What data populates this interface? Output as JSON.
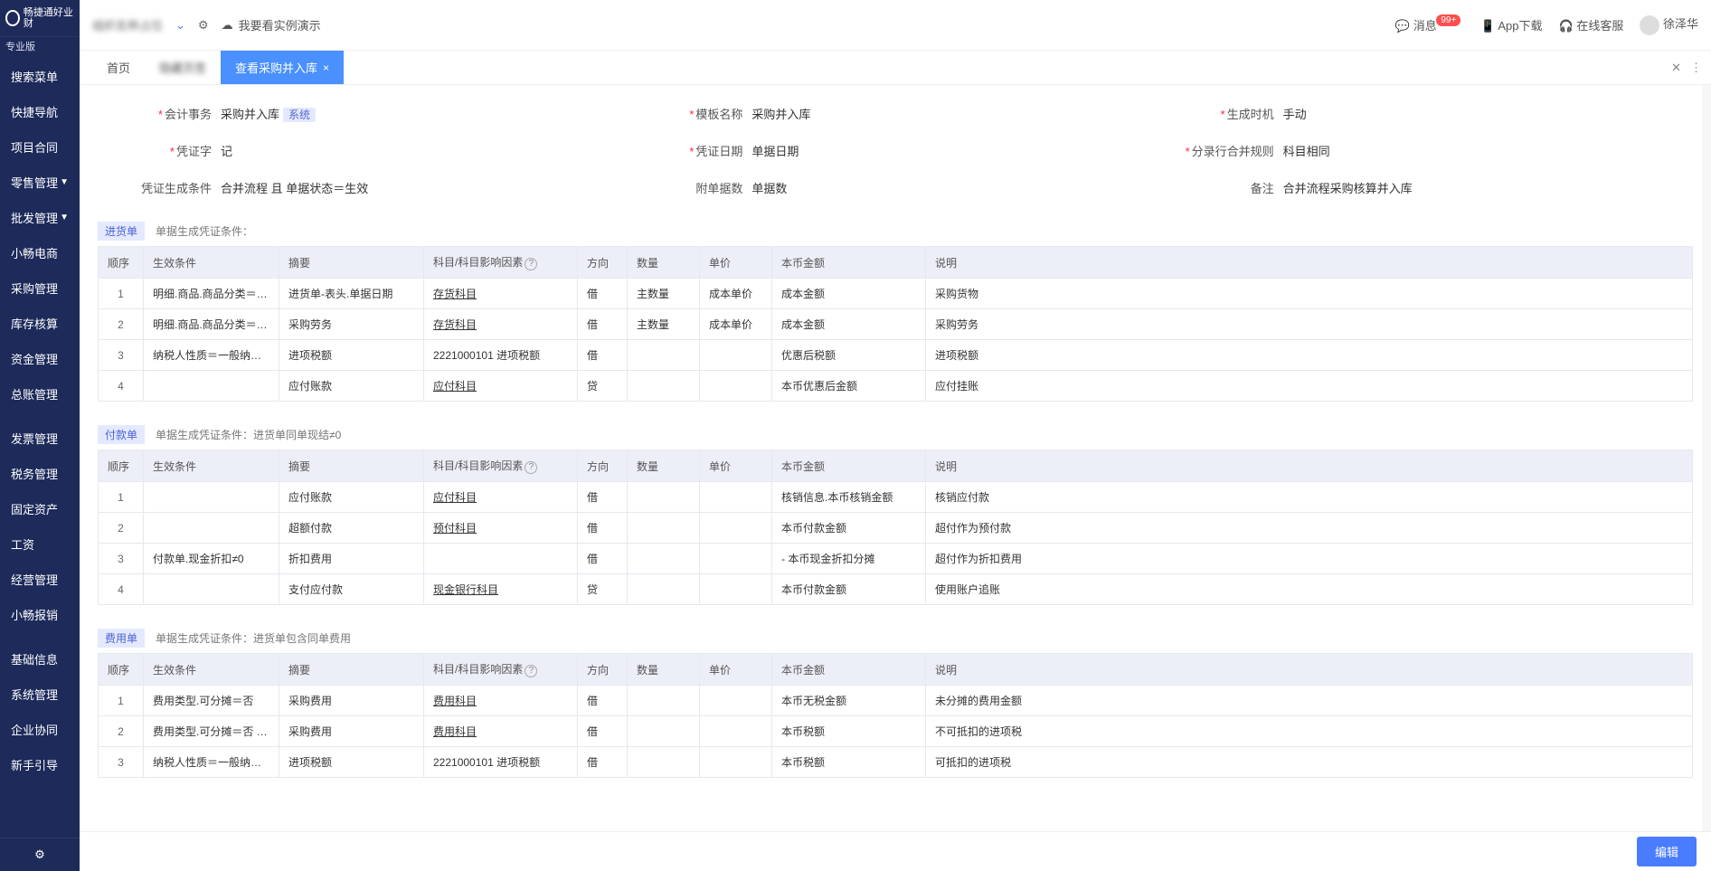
{
  "brand": {
    "name": "畅捷通好业财",
    "edition": "专业版"
  },
  "sidebar": {
    "items": [
      "搜索菜单",
      "快捷导航",
      "项目合同",
      "零售管理",
      "批发管理",
      "小畅电商",
      "采购管理",
      "库存核算",
      "资金管理",
      "总账管理",
      "发票管理",
      "税务管理",
      "固定资产",
      "工资",
      "经营管理",
      "小畅报销",
      "基础信息",
      "系统管理",
      "企业协同",
      "新手引导"
    ]
  },
  "topbar": {
    "org": "组织名称占位",
    "demo": "我要看实例演示",
    "msg": "消息",
    "badge": "99+",
    "download": "App下载",
    "service": "在线客服",
    "user": "徐泽华"
  },
  "tabs": {
    "home": "首页",
    "hidden": "隐藏页签",
    "active": "查看采购并入库"
  },
  "form": {
    "r1": {
      "l1": "会计事务",
      "v1": "采购并入库",
      "tag": "系统",
      "l2": "模板名称",
      "v2": "采购并入库",
      "l3": "生成时机",
      "v3": "手动"
    },
    "r2": {
      "l1": "凭证字",
      "v1": "记",
      "l2": "凭证日期",
      "v2": "单据日期",
      "l3": "分录行合并规则",
      "v3": "科目相同"
    },
    "r3": {
      "l1": "凭证生成条件",
      "v1": "合并流程 且 单据状态＝生效",
      "l2": "附单据数",
      "v2": "单据数",
      "l3": "备注",
      "v3": "合并流程采购核算并入库"
    }
  },
  "cols": [
    "顺序",
    "生效条件",
    "摘要",
    "科目/科目影响因素",
    "方向",
    "数量",
    "单价",
    "本币金额",
    "说明"
  ],
  "colHelp": "?",
  "sec1": {
    "tag": "进货单",
    "cond": "单据生成凭证条件：",
    "rows": [
      [
        "1",
        "明细.商品.商品分类＝货物",
        "进货单-表头.单据日期",
        "存货科目",
        "借",
        "主数量",
        "成本单价",
        "成本金额",
        "采购货物"
      ],
      [
        "2",
        "明细.商品.商品分类＝劳务",
        "采购劳务",
        "存货科目",
        "借",
        "主数量",
        "成本单价",
        "成本金额",
        "采购劳务"
      ],
      [
        "3",
        "纳税人性质＝一般纳税人 且 开",
        "进项税额",
        "2221000101 进项税额",
        "借",
        "",
        "",
        "优惠后税额",
        "进项税额"
      ],
      [
        "4",
        "",
        "应付账款",
        "应付科目",
        "贷",
        "",
        "",
        "本币优惠后金额",
        "应付挂账"
      ]
    ]
  },
  "sec2": {
    "tag": "付款单",
    "cond": "单据生成凭证条件：进货单同单现结≠0",
    "rows": [
      [
        "1",
        "",
        "应付账款",
        "应付科目",
        "借",
        "",
        "",
        "核销信息.本币核销金额",
        "核销应付款"
      ],
      [
        "2",
        "",
        "超额付款",
        "预付科目",
        "借",
        "",
        "",
        "本币付款金额",
        "超付作为预付款"
      ],
      [
        "3",
        "付款单.现金折扣≠0",
        "折扣费用",
        "",
        "借",
        "",
        "",
        "- 本币现金折扣分摊",
        "超付作为折扣费用"
      ],
      [
        "4",
        "",
        "支付应付款",
        "现金银行科目",
        "贷",
        "",
        "",
        "本币付款金额",
        "使用账户追账"
      ]
    ]
  },
  "sec3": {
    "tag": "费用单",
    "cond": "单据生成凭证条件：进货单包含同单费用",
    "rows": [
      [
        "1",
        "费用类型.可分摊＝否",
        "采购费用",
        "费用科目",
        "借",
        "",
        "",
        "本币无税金额",
        "未分摊的费用金额"
      ],
      [
        "2",
        "费用类型.可分摊＝否 且 (纳税",
        "采购费用",
        "费用科目",
        "借",
        "",
        "",
        "本币税额",
        "不可抵扣的进项税"
      ],
      [
        "3",
        "纳税人性质＝一般纳税人 且 (",
        "进项税额",
        "2221000101 进项税额",
        "借",
        "",
        "",
        "本币税额",
        "可抵扣的进项税"
      ]
    ]
  },
  "footer": {
    "edit": "编辑"
  }
}
